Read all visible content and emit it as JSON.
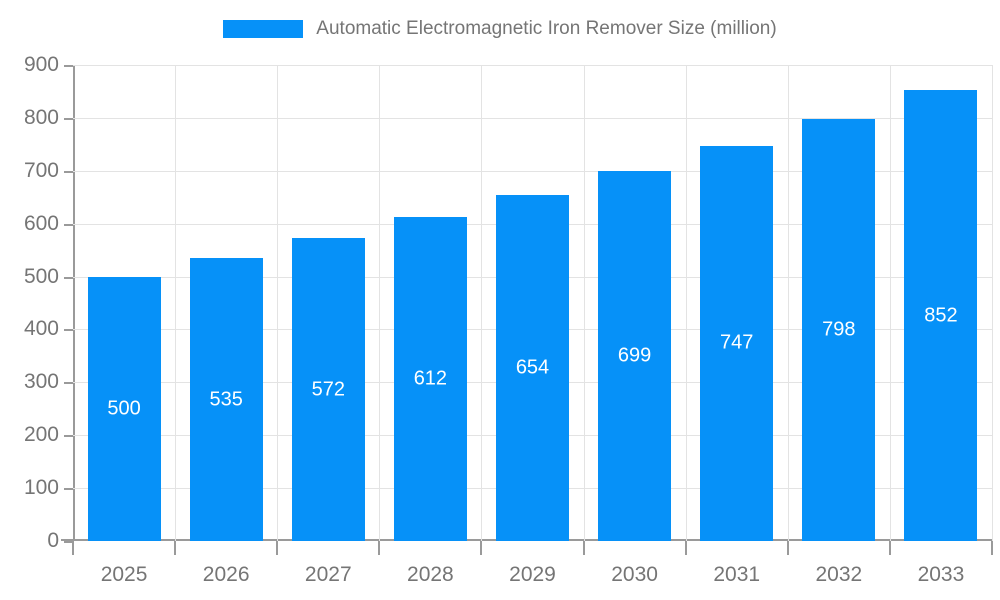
{
  "chart_data": {
    "type": "bar",
    "title": "Automatic Electromagnetic Iron Remover Size (million)",
    "categories": [
      "2025",
      "2026",
      "2027",
      "2028",
      "2029",
      "2030",
      "2031",
      "2032",
      "2033"
    ],
    "values": [
      500,
      535,
      572,
      612,
      654,
      699,
      747,
      798,
      852
    ],
    "xlabel": "",
    "ylabel": "",
    "ylim": [
      0,
      900
    ],
    "ytick_step": 100,
    "ytick_labels": [
      "0",
      "100",
      "200",
      "300",
      "400",
      "500",
      "600",
      "700",
      "800",
      "900"
    ],
    "grid": true,
    "legend_position": "top-center",
    "value_labels_shown": true,
    "colors": {
      "bar": "#0691f8",
      "bar_value_label": "#ffffff",
      "axis_text": "#757575",
      "axis_line": "#9a9a9a",
      "gridline": "#e3e3e3",
      "background": "#ffffff"
    }
  }
}
